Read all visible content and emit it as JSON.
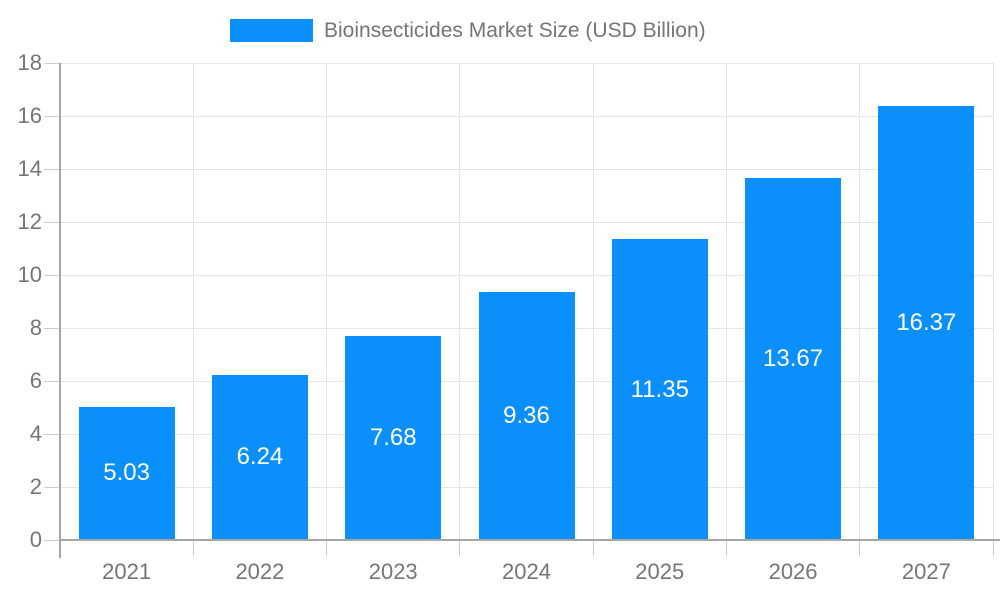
{
  "legend": {
    "label": "Bioinsecticides Market Size (USD Billion)"
  },
  "colors": {
    "accent": "#0b90fb",
    "axis_text": "#757575",
    "bar_label_text": "#ffffff",
    "grid_line": "#e6e6e6",
    "axis_line": "#a6a6a6",
    "tick_line": "#cccccc",
    "background": "#ffffff"
  },
  "chart_data": {
    "type": "bar",
    "title": "Bioinsecticides Market Size (USD Billion)",
    "categories": [
      "2021",
      "2022",
      "2023",
      "2024",
      "2025",
      "2026",
      "2027"
    ],
    "values": [
      5.03,
      6.24,
      7.68,
      9.36,
      11.35,
      13.67,
      16.37
    ],
    "xlabel": "",
    "ylabel": "",
    "ylim": [
      0,
      18
    ],
    "yticks": [
      0,
      2,
      4,
      6,
      8,
      10,
      12,
      14,
      16,
      18
    ],
    "grid": true,
    "legend_position": "top",
    "value_labels": "inside-center",
    "value_label_decimals": 2
  }
}
